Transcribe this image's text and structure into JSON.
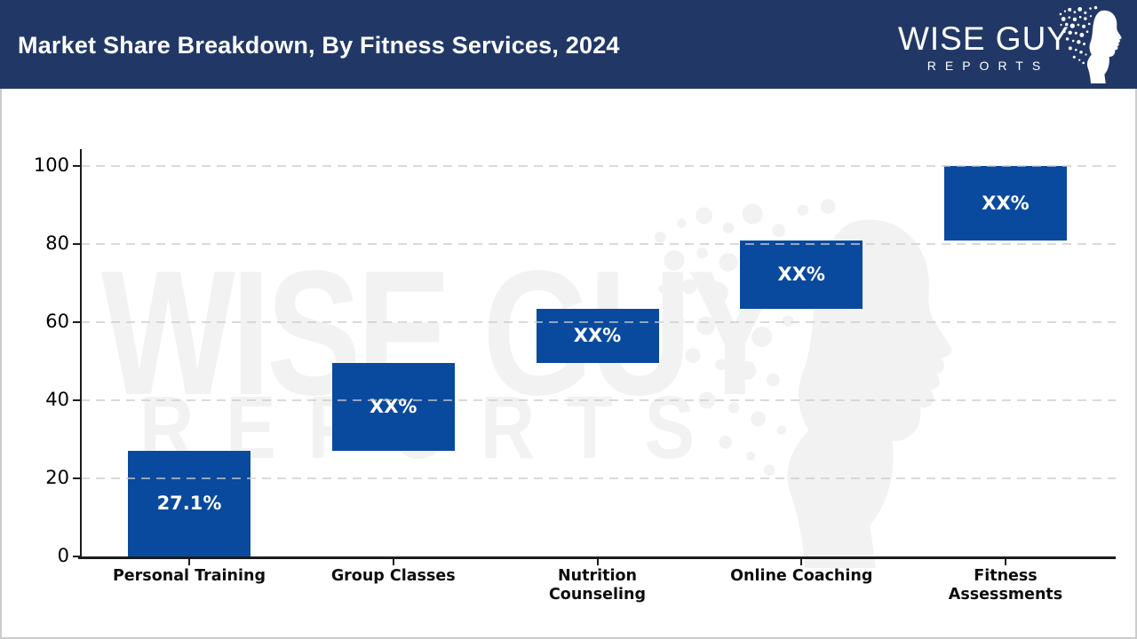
{
  "header": {
    "title": "Market Share Breakdown, By Fitness Services, 2024",
    "logo": {
      "line1": "WISE GUY",
      "line2": "REPORTS"
    }
  },
  "watermark": {
    "line1": "WISE GUY",
    "line2": "REPORTS"
  },
  "chart_data": {
    "type": "bar",
    "subtype": "waterfall",
    "title": "Market Share Breakdown, By Fitness Services, 2024",
    "categories": [
      "Personal Training",
      "Group Classes",
      "Nutrition Counseling",
      "Online Coaching",
      "Fitness Assessments"
    ],
    "category_lines": [
      [
        "Personal Training"
      ],
      [
        "Group Classes"
      ],
      [
        "Nutrition",
        "Counseling"
      ],
      [
        "Online Coaching"
      ],
      [
        "Fitness",
        "Assessments"
      ]
    ],
    "segments": [
      {
        "category": "Personal Training",
        "start": 0,
        "end": 27.1,
        "value": 27.1,
        "label": "27.1%"
      },
      {
        "category": "Group Classes",
        "start": 27.1,
        "end": 49.6,
        "value": 22.5,
        "label": "XX%"
      },
      {
        "category": "Nutrition Counseling",
        "start": 49.6,
        "end": 63.4,
        "value": 13.8,
        "label": "XX%"
      },
      {
        "category": "Online Coaching",
        "start": 63.4,
        "end": 81.0,
        "value": 17.6,
        "label": "XX%"
      },
      {
        "category": "Fitness Assessments",
        "start": 81.0,
        "end": 100.0,
        "value": 19.0,
        "label": "XX%"
      }
    ],
    "ylim": [
      0,
      100
    ],
    "yticks": [
      0,
      20,
      40,
      60,
      80,
      100
    ],
    "xlabel": "",
    "ylabel": "",
    "grid": "horizontal-dashed",
    "legend": "none",
    "bar_color": "#0a4a9e",
    "bar_label_color": "#ffffff"
  },
  "colors": {
    "header_bg": "#213866",
    "bar": "#0a4a9e",
    "watermark": "#f2f2f2",
    "axis": "#1c1c1c",
    "gridline": "#cbcbcb"
  }
}
